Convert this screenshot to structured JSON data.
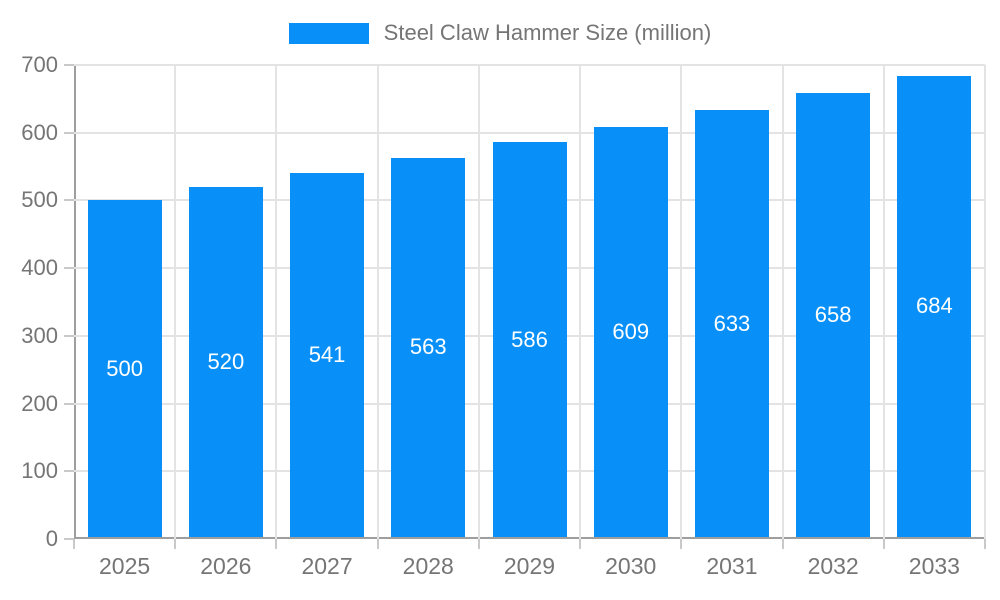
{
  "chart_data": {
    "type": "bar",
    "title": "Steel Claw Hammer Size (million)",
    "legend_label": "Steel Claw Hammer Size (million)",
    "legend_position": "top-center",
    "categories": [
      "2025",
      "2026",
      "2027",
      "2028",
      "2029",
      "2030",
      "2031",
      "2032",
      "2033"
    ],
    "series": [
      {
        "name": "Steel Claw Hammer Size (million)",
        "values": [
          500,
          520,
          541,
          563,
          586,
          609,
          633,
          658,
          684
        ]
      }
    ],
    "bar_labels": [
      "500",
      "520",
      "541",
      "563",
      "586",
      "609",
      "633",
      "658",
      "684"
    ],
    "xlabel": "",
    "ylabel": "",
    "ylim": [
      0,
      700
    ],
    "yticks": [
      0,
      100,
      200,
      300,
      400,
      500,
      600,
      700
    ],
    "grid": true,
    "colors": {
      "bar": "#0990f8",
      "bar_label_text": "#ffffff",
      "axis_line": "#9e9e9e",
      "grid_line": "#e3e3e3",
      "tick_mark": "#c9c9c9",
      "axis_text": "#757575",
      "legend_text": "#757575",
      "background": "#ffffff"
    }
  }
}
